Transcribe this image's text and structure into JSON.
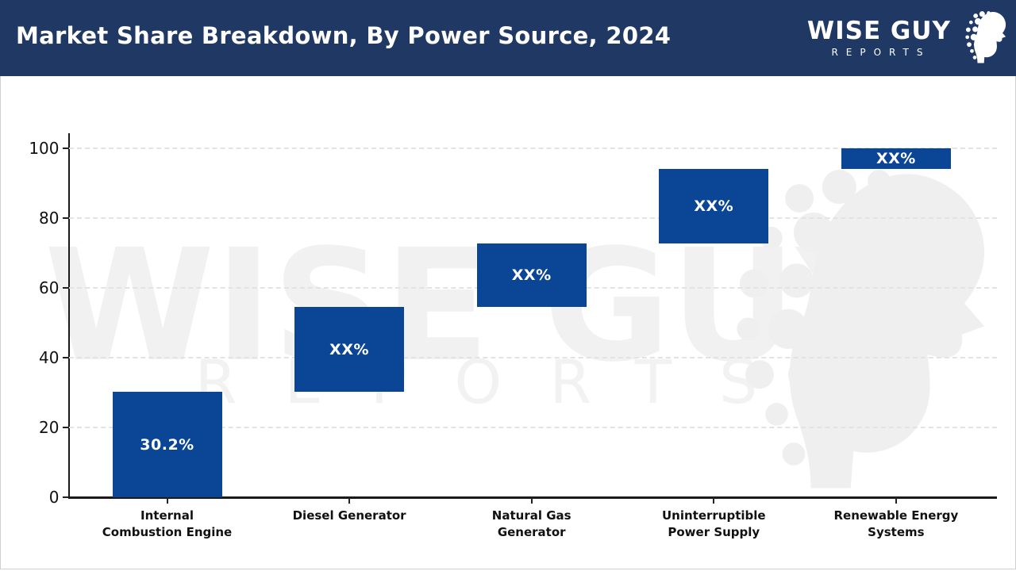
{
  "header": {
    "title": "Market Share Breakdown, By Power Source, 2024",
    "background_color": "#203864",
    "logo": {
      "wordmark": "WISE GUY",
      "subtitle": "REPORTS"
    }
  },
  "watermark": {
    "line1": "WISE GUY",
    "line2": "REPORTS"
  },
  "chart_data": {
    "type": "bar",
    "subtype": "waterfall",
    "title": "Market Share Breakdown, By Power Source, 2024",
    "xlabel": "",
    "ylabel": "",
    "ylim": [
      0,
      104
    ],
    "yticks": [
      0,
      20,
      40,
      60,
      80,
      100
    ],
    "grid": "horizontal-dashed",
    "legend": "none",
    "bar_color": "#0a4596",
    "categories": [
      [
        "Internal",
        "Combustion Engine"
      ],
      [
        "Diesel Generator"
      ],
      [
        "Natural Gas",
        "Generator"
      ],
      [
        "Uninterruptible",
        "Power Supply"
      ],
      [
        "Renewable Energy",
        "Systems"
      ]
    ],
    "segments": [
      {
        "category": "Internal Combustion Engine",
        "start": 0,
        "end": 30.2,
        "label": "30.2%"
      },
      {
        "category": "Diesel Generator",
        "start": 30.2,
        "end": 54.5,
        "label": "XX%"
      },
      {
        "category": "Natural Gas Generator",
        "start": 54.5,
        "end": 72.7,
        "label": "XX%"
      },
      {
        "category": "Uninterruptible Power Supply",
        "start": 72.7,
        "end": 94.1,
        "label": "XX%"
      },
      {
        "category": "Renewable Energy Systems",
        "start": 94.1,
        "end": 100.0,
        "label": "XX%"
      }
    ]
  }
}
